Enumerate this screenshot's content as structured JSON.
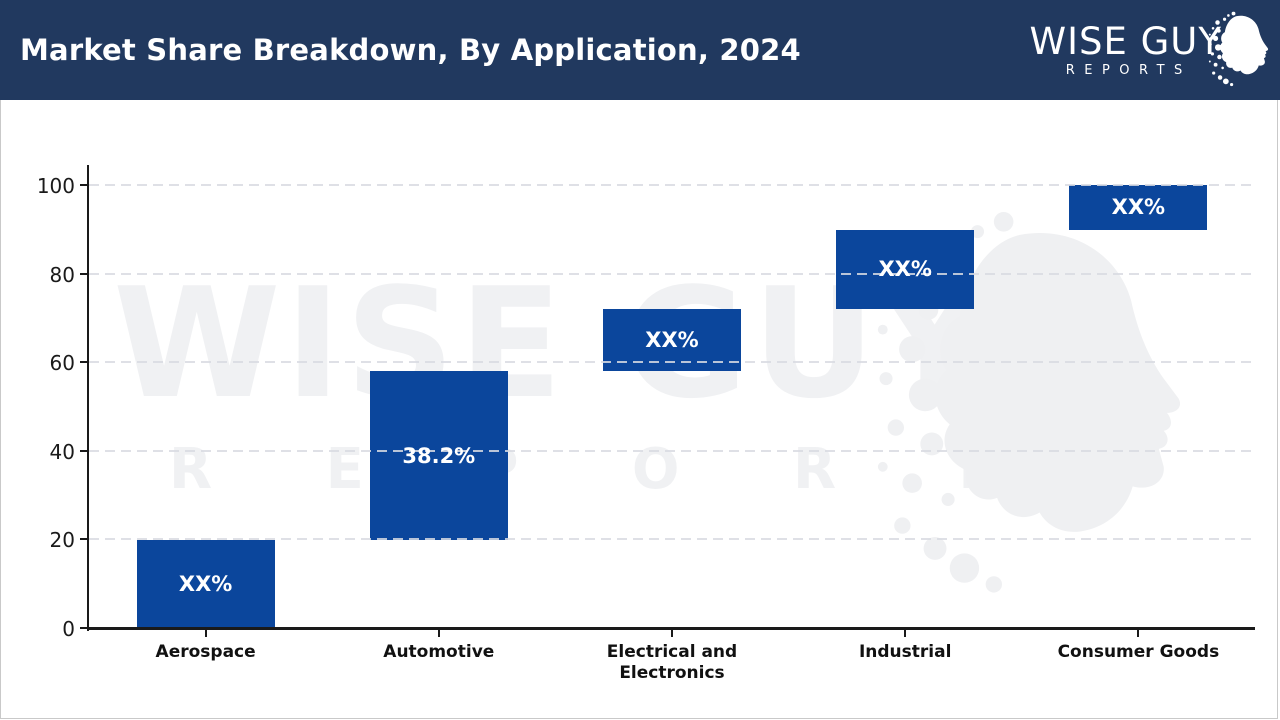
{
  "header": {
    "logo": {
      "wordmark": "WISE GUY",
      "subtext": "REPORTS"
    }
  },
  "watermark": {
    "line1": "WISE GUY",
    "line2": "R E P O R T S"
  },
  "colors": {
    "header_bg": "#21395f",
    "bar": "#0b469c",
    "axis": "#1a1a1a",
    "grid": "#d9d9d9",
    "bar_label": "#ffffff",
    "watermark": "#f0f1f3",
    "border": "#c9c9c9"
  },
  "chart_data": {
    "type": "bar",
    "subtype": "waterfall",
    "title": "Market Share Breakdown, By Application, 2024",
    "categories": [
      "Aerospace",
      "Automotive",
      "Electrical and\nElectronics",
      "Industrial",
      "Consumer Goods"
    ],
    "segments": [
      {
        "category": "Aerospace",
        "start": 0,
        "end": 19.8,
        "value": 19.8,
        "value_label": "XX%"
      },
      {
        "category": "Automotive",
        "start": 19.8,
        "end": 58,
        "value": 38.2,
        "value_label": "38.2%"
      },
      {
        "category": "Electrical and\nElectronics",
        "start": 58,
        "end": 72,
        "value": 14,
        "value_label": "XX%"
      },
      {
        "category": "Industrial",
        "start": 72,
        "end": 90,
        "value": 18,
        "value_label": "XX%"
      },
      {
        "category": "Consumer Goods",
        "start": 90,
        "end": 100,
        "value": 10,
        "value_label": "XX%"
      }
    ],
    "yticks": [
      0,
      20,
      40,
      60,
      80,
      100
    ],
    "ylim": [
      0,
      104.6
    ],
    "xlabel": "",
    "ylabel": "",
    "grid": "horizontal-dashed",
    "legend_position": "none"
  }
}
